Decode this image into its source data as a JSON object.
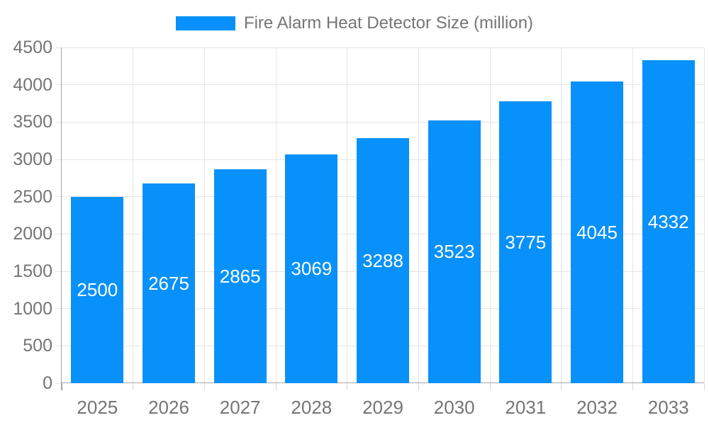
{
  "chart_data": {
    "type": "bar",
    "title": "Fire Alarm Heat Detector Size (million)",
    "categories": [
      "2025",
      "2026",
      "2027",
      "2028",
      "2029",
      "2030",
      "2031",
      "2032",
      "2033"
    ],
    "values": [
      2500,
      2675,
      2865,
      3069,
      3288,
      3523,
      3775,
      4045,
      4332
    ],
    "xlabel": "",
    "ylabel": "",
    "ylim": [
      0,
      4500
    ],
    "yticks": [
      0,
      500,
      1000,
      1500,
      2000,
      2500,
      3000,
      3500,
      4000,
      4500
    ],
    "grid": true,
    "legend_position": "top-center",
    "value_labels": "inside-center",
    "colors": {
      "bar": "#0891fa",
      "value_label": "#ffffff",
      "axis": "#a6a6a6",
      "grid": "#e5e5e5",
      "text": "#757575"
    }
  }
}
